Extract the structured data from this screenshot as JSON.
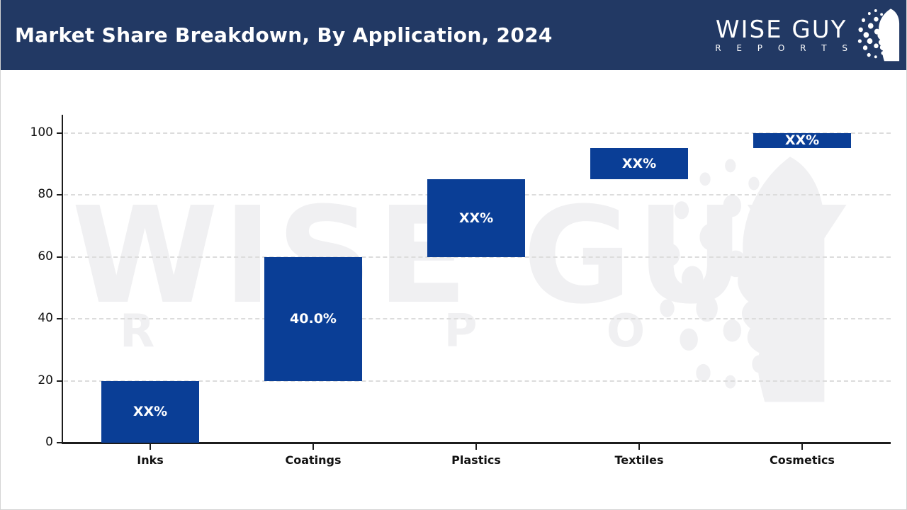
{
  "header": {
    "title": "Market Share Breakdown, By Application, 2024",
    "logo": {
      "wordmark": "WISE GUY",
      "subtitle": "R E P O R T S"
    }
  },
  "watermark": {
    "wordmark": "WISE GUY",
    "subtitle": "R E P O R T S"
  },
  "chart_data": {
    "type": "bar",
    "subtype": "waterfall",
    "title": "Market Share Breakdown, By Application, 2024",
    "categories": [
      "Inks",
      "Coatings",
      "Plastics",
      "Textiles",
      "Cosmetics"
    ],
    "segments": [
      {
        "category": "Inks",
        "start": 0,
        "end": 20,
        "label": "XX%"
      },
      {
        "category": "Coatings",
        "start": 20,
        "end": 60,
        "label": "40.0%"
      },
      {
        "category": "Plastics",
        "start": 60,
        "end": 85,
        "label": "XX%"
      },
      {
        "category": "Textiles",
        "start": 85,
        "end": 95,
        "label": "XX%"
      },
      {
        "category": "Cosmetics",
        "start": 95,
        "end": 100,
        "label": "XX%"
      }
    ],
    "yticks": [
      0,
      20,
      40,
      60,
      80,
      100
    ],
    "ylim": [
      0,
      105
    ],
    "xlabel": "",
    "ylabel": "",
    "grid": "horizontal-dashed",
    "legend": "none"
  },
  "colors": {
    "header_bg": "#223964",
    "bar": "#0a3e96",
    "grid": "#dcdcdc",
    "axis": "#1c1c1c",
    "tick_label": "#111111",
    "watermark": "#f0f0f2",
    "page_border": "#d4d4d4"
  }
}
